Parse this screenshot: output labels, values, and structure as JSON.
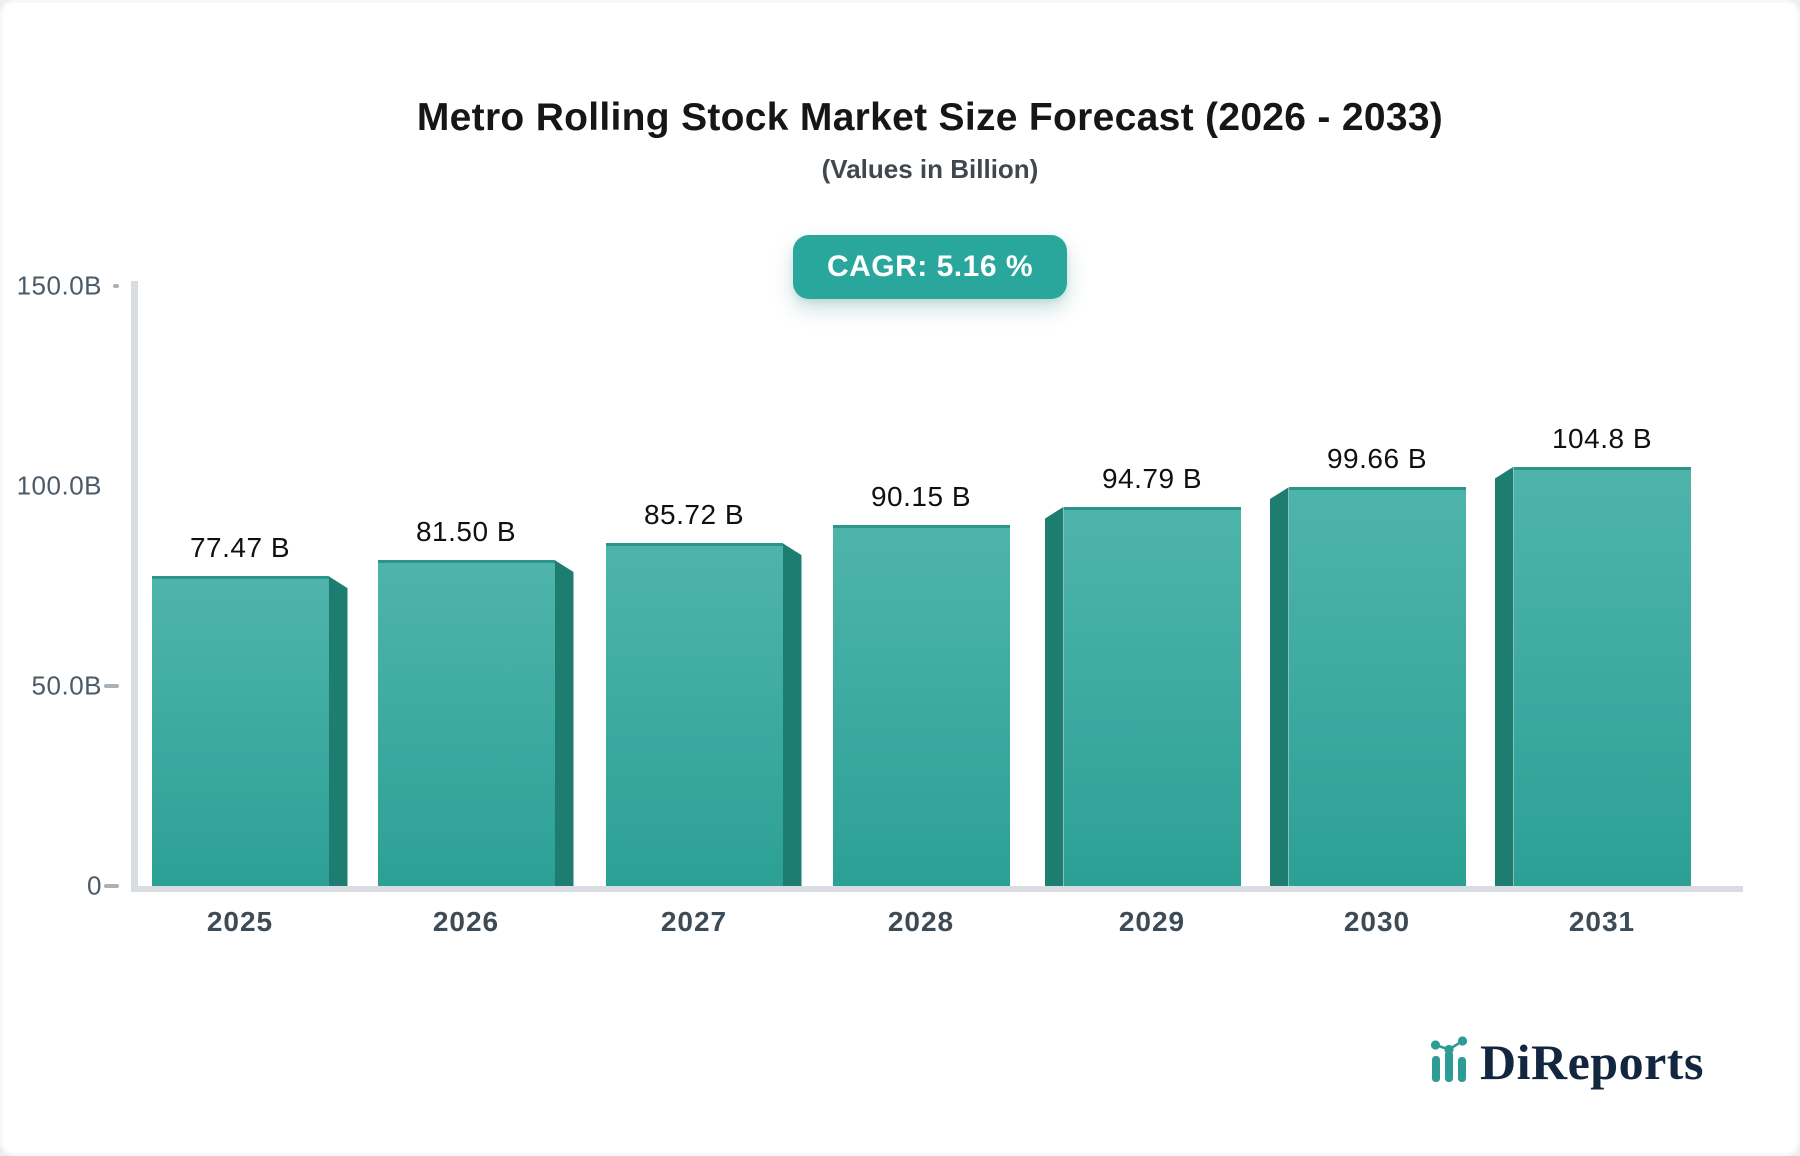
{
  "header": {
    "title": "Metro Rolling Stock Market Size Forecast (2026 - 2033)",
    "subtitle": "(Values in Billion)",
    "cagr_label": "CAGR: 5.16 %"
  },
  "chart_data": {
    "type": "bar",
    "title": "Metro Rolling Stock Market Size Forecast (2026 - 2033)",
    "subtitle": "(Values in Billion)",
    "cagr_text": "CAGR: 5.16 %",
    "categories": [
      "2025",
      "2026",
      "2027",
      "2028",
      "2029",
      "2030",
      "2031"
    ],
    "values": [
      77.47,
      81.5,
      85.72,
      90.15,
      94.79,
      99.66,
      104.8
    ],
    "value_labels": [
      "77.47 B",
      "81.50 B",
      "85.72 B",
      "90.15 B",
      "94.79 B",
      "99.66 B",
      "104.8 B"
    ],
    "xlabel": "",
    "ylabel": "",
    "ylim": [
      0,
      150
    ],
    "y_tick_labels": [
      "150.0B",
      "100.0B",
      "50.0B",
      "0"
    ],
    "grid": false,
    "legend": "none",
    "bar_style": "3d-extruded, vanishing point at chart center"
  },
  "logo": {
    "text": "DiReports",
    "icon": "mini-bar-chart-icon"
  },
  "colors": {
    "bar_face_top": "#4eb4ab",
    "bar_face_bottom": "#2ca095",
    "bar_side": "#1e7d71",
    "badge_bg": "#2aa79c",
    "axis_line": "#d9dce0",
    "logo_icon": "#2e9c94",
    "logo_text": "#132640"
  }
}
